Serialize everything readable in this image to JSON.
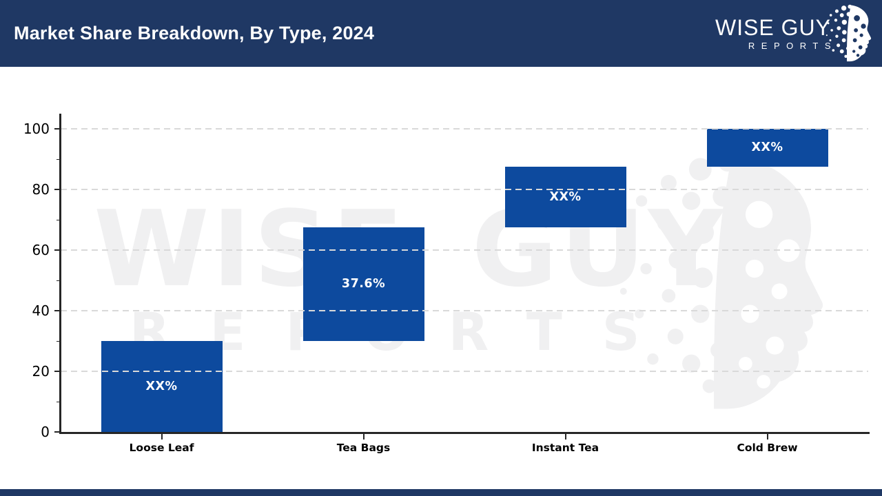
{
  "header": {
    "title": "Market Share Breakdown, By Type, 2024",
    "logo": {
      "line1": "WISE GUY",
      "line2": "REPORTS"
    }
  },
  "watermark": {
    "line1": "WISE GUY",
    "line2": "REPORTS"
  },
  "colors": {
    "header_bg": "#1f3864",
    "footer_bg": "#1f3864",
    "bar": "#0d4a9e",
    "bar_label": "#ffffff",
    "grid": "#d9d9d9",
    "axis": "#262626",
    "watermark": "#f0f0f1"
  },
  "chart_data": {
    "type": "bar",
    "subtype": "waterfall",
    "title": "Market Share Breakdown, By Type, 2024",
    "categories": [
      "Loose Leaf",
      "Tea Bags",
      "Instant Tea",
      "Cold Brew"
    ],
    "segments": [
      {
        "category": "Loose Leaf",
        "start": 0,
        "end": 30,
        "value": 30,
        "label": "XX%"
      },
      {
        "category": "Tea Bags",
        "start": 30,
        "end": 67.6,
        "value": 37.6,
        "label": "37.6%"
      },
      {
        "category": "Instant Tea",
        "start": 67.6,
        "end": 87.6,
        "value": 20,
        "label": "XX%"
      },
      {
        "category": "Cold Brew",
        "start": 87.6,
        "end": 100,
        "value": 12.4,
        "label": "XX%"
      }
    ],
    "xlabel": "",
    "ylabel": "",
    "ylim": [
      0,
      100
    ],
    "yticks": [
      0,
      20,
      40,
      60,
      80,
      100
    ],
    "grid": "horizontal-dashed",
    "legend": "none"
  }
}
